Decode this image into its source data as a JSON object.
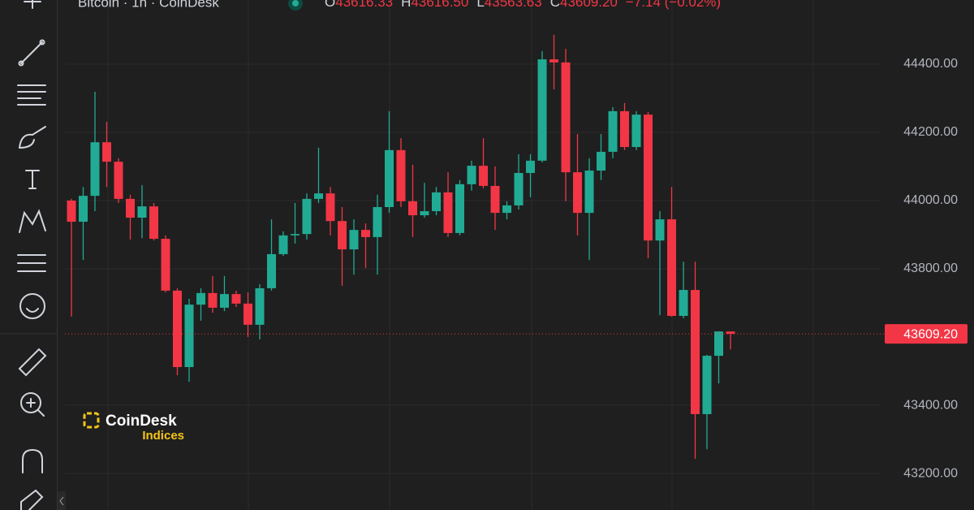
{
  "chart_data": {
    "type": "candlestick",
    "header": {
      "symbol": "Bitcoin · 1h · CoinDesk",
      "ohlc": [
        {
          "letter": "O",
          "value": "43616.33"
        },
        {
          "letter": "H",
          "value": "43616.50"
        },
        {
          "letter": "L",
          "value": "43563.63"
        },
        {
          "letter": "C",
          "value": "43609.20"
        }
      ],
      "change": "−7.14 (−0.02%)"
    },
    "watermark": {
      "brand": "CoinDesk",
      "product": "Indices"
    },
    "up_color": "#22ab94",
    "down_color": "#f23645",
    "open": [
      44000,
      43938,
      44014,
      44171,
      44114,
      44005,
      43950,
      43983,
      43888,
      43736,
      43512,
      43695,
      43729,
      43686,
      43726,
      43698,
      43636,
      43743,
      43843,
      43898,
      43902,
      44005,
      44021,
      43940,
      43857,
      43914,
      43893,
      43981,
      44148,
      43998,
      43957,
      43969,
      44024,
      43905,
      44048,
      44102,
      44043,
      43964,
      43986,
      44081,
      44117,
      44414,
      44405,
      44083,
      43964,
      44088,
      44143,
      44262,
      44157,
      44252,
      43883,
      43945,
      43662,
      43738,
      43374,
      43545,
      43616.33
    ],
    "high": [
      44005,
      44040,
      44319,
      44231,
      44124,
      44017,
      44045,
      43993,
      43898,
      43743,
      43712,
      43743,
      43779,
      43779,
      43736,
      43731,
      43755,
      43945,
      43910,
      43993,
      44021,
      44155,
      44040,
      43981,
      43945,
      43933,
      44017,
      44262,
      44183,
      44105,
      44052,
      44040,
      44083,
      44060,
      44117,
      44183,
      44100,
      43998,
      44136,
      44136,
      44438,
      44486,
      44445,
      44195,
      44124,
      44195,
      44274,
      44286,
      44262,
      44260,
      43969,
      44040,
      43821,
      43821,
      43548,
      43617,
      43616.5
    ],
    "low": [
      43660,
      43826,
      43969,
      44040,
      43993,
      43886,
      43890,
      43883,
      43731,
      43488,
      43469,
      43648,
      43671,
      43676,
      43688,
      43600,
      43593,
      43736,
      43838,
      43874,
      43886,
      43993,
      43898,
      43750,
      43783,
      43802,
      43783,
      43964,
      43981,
      43893,
      43950,
      43957,
      43893,
      43898,
      44029,
      44036,
      43914,
      43945,
      43974,
      44010,
      44112,
      44326,
      43998,
      43898,
      43826,
      44060,
      44124,
      44148,
      44148,
      43831,
      43664,
      43660,
      43655,
      43243,
      43271,
      43464,
      43563.63
    ],
    "close": [
      43938,
      44014,
      44171,
      44114,
      44005,
      43950,
      43983,
      43888,
      43736,
      43512,
      43695,
      43729,
      43686,
      43726,
      43698,
      43636,
      43743,
      43843,
      43898,
      43902,
      44005,
      44021,
      43940,
      43857,
      43914,
      43893,
      43981,
      44148,
      43998,
      43957,
      43969,
      44024,
      43905,
      44048,
      44102,
      44043,
      43964,
      43986,
      44081,
      44117,
      44414,
      44405,
      44083,
      43964,
      44088,
      44143,
      44262,
      44157,
      44252,
      43883,
      43945,
      43662,
      43738,
      43374,
      43545,
      43616.34,
      43609.2
    ],
    "last_close_label": "43609.20",
    "ylim": [
      43093,
      44588
    ],
    "yticks": [
      {
        "value": 43200,
        "label": "43200.00"
      },
      {
        "value": 43400,
        "label": "43400.00"
      },
      {
        "value": 43800,
        "label": "43800.00"
      },
      {
        "value": 44000,
        "label": "44000.00"
      },
      {
        "value": 44200,
        "label": "44200.00"
      },
      {
        "value": 44400,
        "label": "44400.00"
      }
    ],
    "grid": true
  }
}
